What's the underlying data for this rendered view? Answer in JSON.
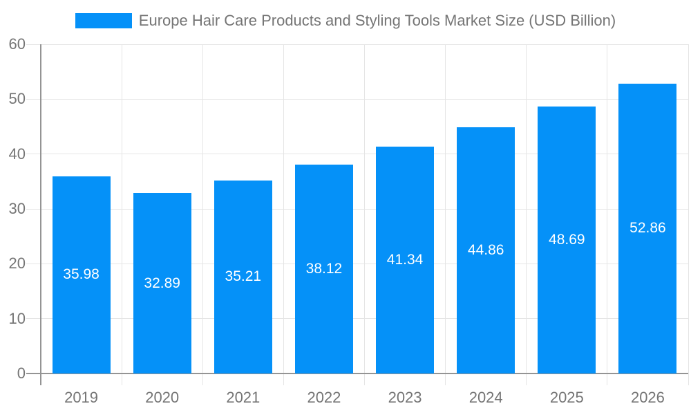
{
  "chart_data": {
    "type": "bar",
    "title": "Europe Hair Care Products and Styling Tools Market Size (USD Billion)",
    "legend_position": "top",
    "categories": [
      "2019",
      "2020",
      "2021",
      "2022",
      "2023",
      "2024",
      "2025",
      "2026"
    ],
    "series": [
      {
        "name": "Europe Hair Care Products and Styling Tools Market Size (USD Billion)",
        "values": [
          35.98,
          32.89,
          35.21,
          38.12,
          41.34,
          44.86,
          48.69,
          52.86
        ]
      }
    ],
    "xlabel": "",
    "ylabel": "",
    "ylim": [
      0,
      60
    ],
    "y_ticks": [
      0,
      10,
      20,
      30,
      40,
      50,
      60
    ],
    "grid": true,
    "value_label_position": "inside-center",
    "colors": {
      "bar": "#0591f8",
      "value_label": "#ffffff",
      "axis": "#949494",
      "grid": "#e5e5e5",
      "text": "#757575",
      "background": "#ffffff"
    }
  }
}
